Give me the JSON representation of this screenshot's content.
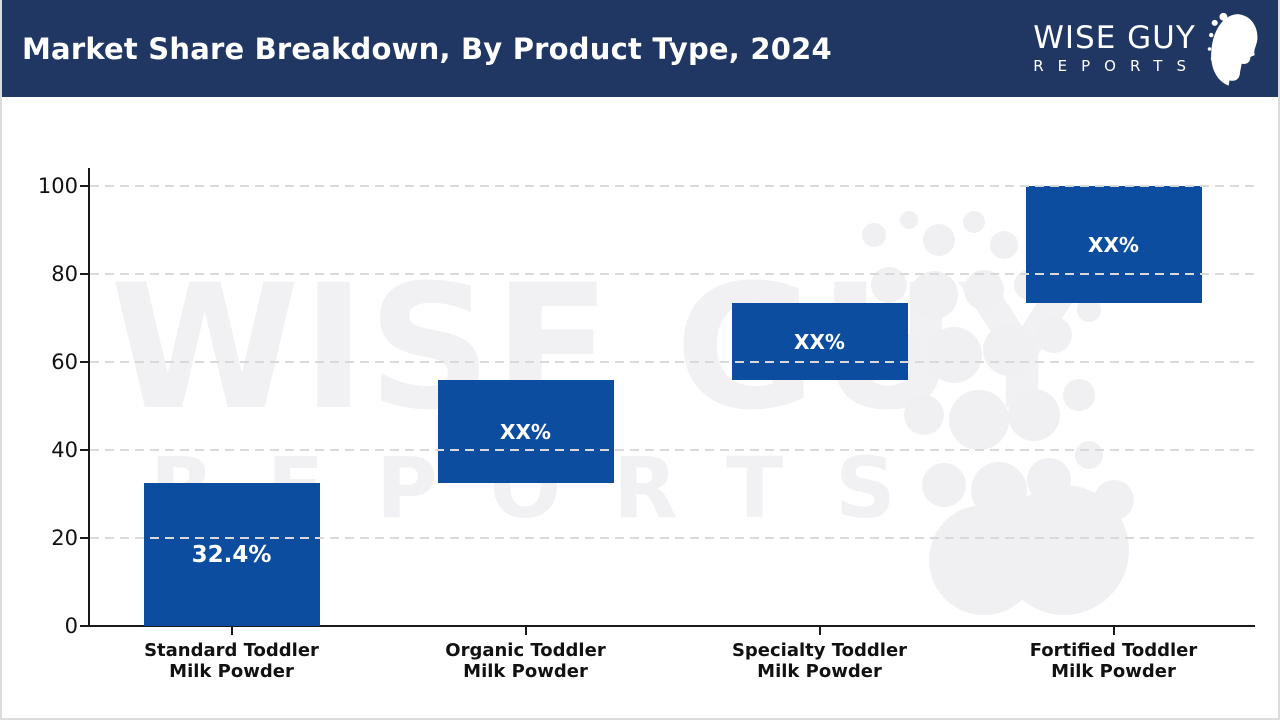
{
  "header": {
    "title": "Market Share Breakdown, By Product Type, 2024",
    "bg_color": "#203764",
    "logo": {
      "wordmark": "WISE GUY",
      "subtitle": "REPORTS"
    }
  },
  "watermark": {
    "line1": "WISE GUY",
    "line2": "REPORTS"
  },
  "chart_data": {
    "type": "bar",
    "subtype": "waterfall-floating-segments",
    "title": "Market Share Breakdown, By Product Type, 2024",
    "categories": [
      [
        "Standard Toddler",
        "Milk Powder"
      ],
      [
        "Organic Toddler",
        "Milk Powder"
      ],
      [
        "Specialty Toddler",
        "Milk Powder"
      ],
      [
        "Fortified Toddler",
        "Milk Powder"
      ]
    ],
    "segments": [
      {
        "start": 0,
        "end": 32.4,
        "label": "32.4%"
      },
      {
        "start": 32.4,
        "end": 55.8,
        "label": "XX%"
      },
      {
        "start": 55.8,
        "end": 73.4,
        "label": "XX%"
      },
      {
        "start": 73.4,
        "end": 100,
        "label": "XX%"
      }
    ],
    "ylim": [
      0,
      100
    ],
    "yticks": [
      0,
      20,
      40,
      60,
      80,
      100
    ],
    "xlabel": "",
    "ylabel": "",
    "grid": {
      "axis": "y",
      "style": "dashed",
      "color": "#d9d9d9"
    },
    "legend": "none",
    "bar_color": "#0d4da0",
    "bar_label_color": "#ffffff",
    "axis_color": "#1a1a1a"
  }
}
